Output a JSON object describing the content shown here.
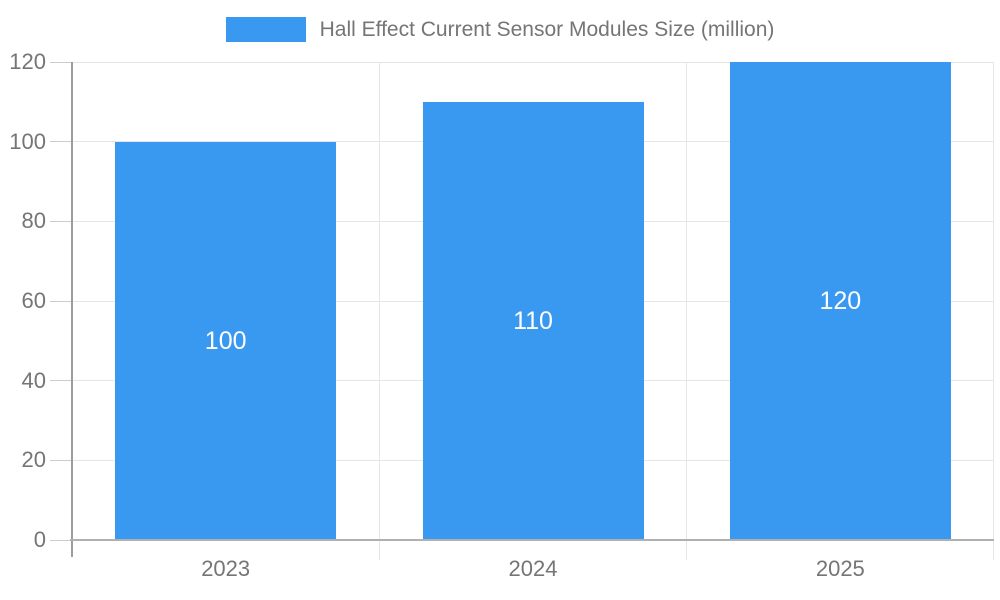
{
  "legend": {
    "label": "Hall Effect Current Sensor Modules Size (million)"
  },
  "chart_data": {
    "type": "bar",
    "title": "Hall Effect Current Sensor Modules Size (million)",
    "categories": [
      "2023",
      "2024",
      "2025"
    ],
    "values": [
      100,
      110,
      120
    ],
    "value_labels": [
      "100",
      "110",
      "120"
    ],
    "xlabel": "",
    "ylabel": "",
    "ylim": [
      0,
      120
    ],
    "yticks": [
      0,
      20,
      40,
      60,
      80,
      100,
      120
    ],
    "grid": true,
    "legend_position": "top",
    "colors": {
      "bar": "#3999f0",
      "gridline": "#e6e6e6",
      "y_axis_line": "#9c9c9c",
      "x_axis_line": "#b0b0b0",
      "tick": "#cccccc",
      "axis_label": "#757575",
      "value_label": "#ffffff",
      "background": "#ffffff"
    }
  }
}
